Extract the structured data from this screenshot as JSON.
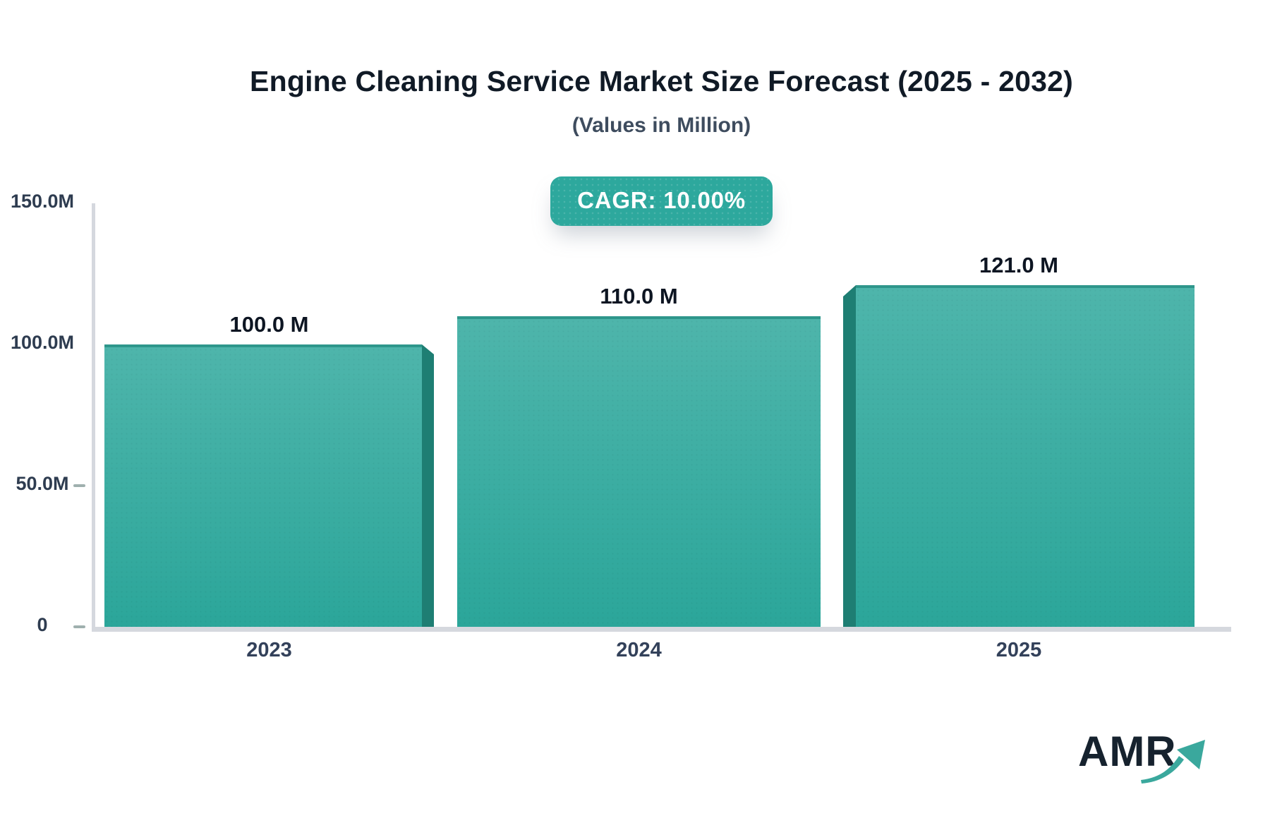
{
  "header": {
    "title": "Engine Cleaning Service Market Size Forecast (2025 - 2032)",
    "subtitle": "(Values in Million)",
    "cagr_badge": "CAGR: 10.00%"
  },
  "colors": {
    "accent_teal": "#2da89d",
    "bar_face_top": "#4eb5ab",
    "bar_face_bottom": "#2ba69a",
    "bar_side_dark": "#1e7e73",
    "axis_gray": "#d5d8de",
    "title_text": "#101a26",
    "subtitle_text": "#3e4c5e",
    "logo_navy": "#16222e",
    "logo_arrow_teal": "#3aa89d"
  },
  "logo": {
    "text": "AMR",
    "icon": "growth-arrow-icon"
  },
  "chart_data": {
    "type": "bar",
    "title": "Engine Cleaning Service Market Size Forecast (2025 - 2032)",
    "subtitle": "(Values in Million)",
    "unit": "Million",
    "cagr_percent": 10.0,
    "categories": [
      "2023",
      "2024",
      "2025"
    ],
    "values": [
      100.0,
      110.0,
      121.0
    ],
    "value_labels": [
      "100.0 M",
      "110.0 M",
      "121.0 M"
    ],
    "xlabel": "",
    "ylabel": "",
    "ylim": [
      0,
      150
    ],
    "yticks": [
      150,
      100,
      50,
      0
    ],
    "ytick_labels": [
      "150.0M",
      "100.0M",
      "50.0M",
      "0"
    ],
    "ytick_dashes": [
      false,
      false,
      true,
      true
    ],
    "grid": false,
    "legend_position": "none",
    "bar_color": "teal-gradient-3d"
  }
}
